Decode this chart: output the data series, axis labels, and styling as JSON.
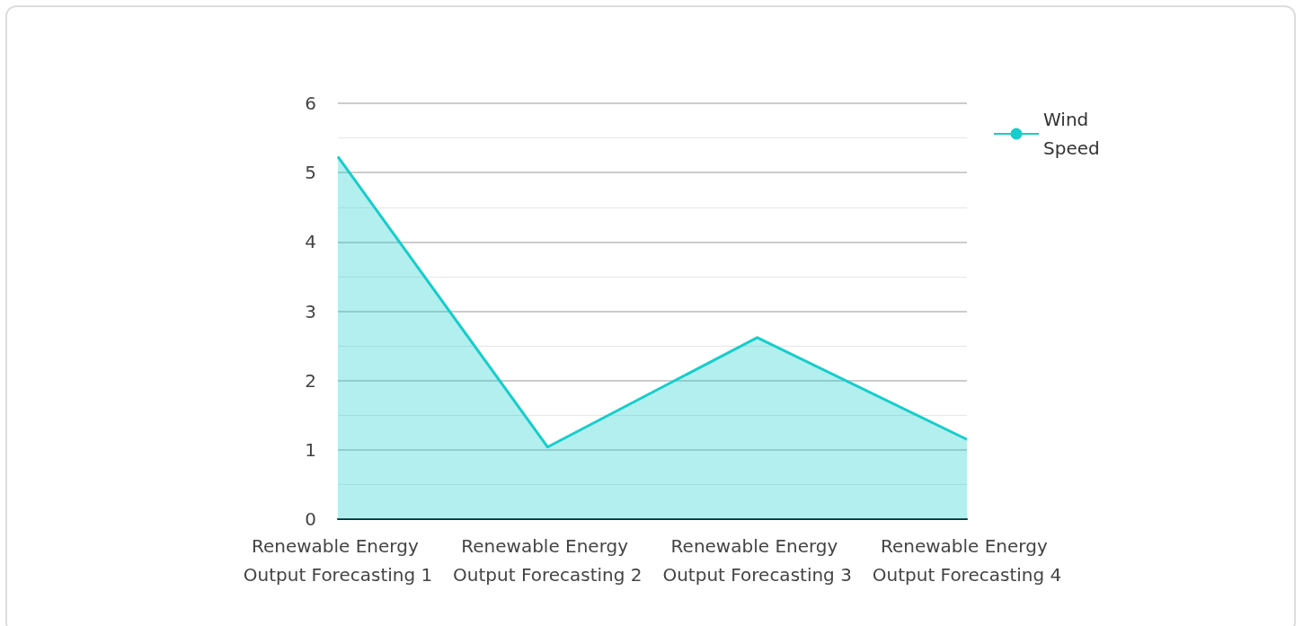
{
  "chart_data": {
    "type": "area",
    "categories": [
      "Renewable Energy Output Forecasting 1",
      "Renewable Energy Output Forecasting 2",
      "Renewable Energy Output Forecasting 3",
      "Renewable Energy Output Forecasting 4"
    ],
    "series": [
      {
        "name": "Wind Speed",
        "color": "#16cdcb",
        "values": [
          5.23,
          1.04,
          2.62,
          1.15
        ]
      }
    ],
    "ylim": [
      0,
      6
    ],
    "yticks": [
      0,
      1,
      2,
      3,
      4,
      5,
      6
    ],
    "grid": "y",
    "legend": "top right",
    "marker": "none"
  }
}
